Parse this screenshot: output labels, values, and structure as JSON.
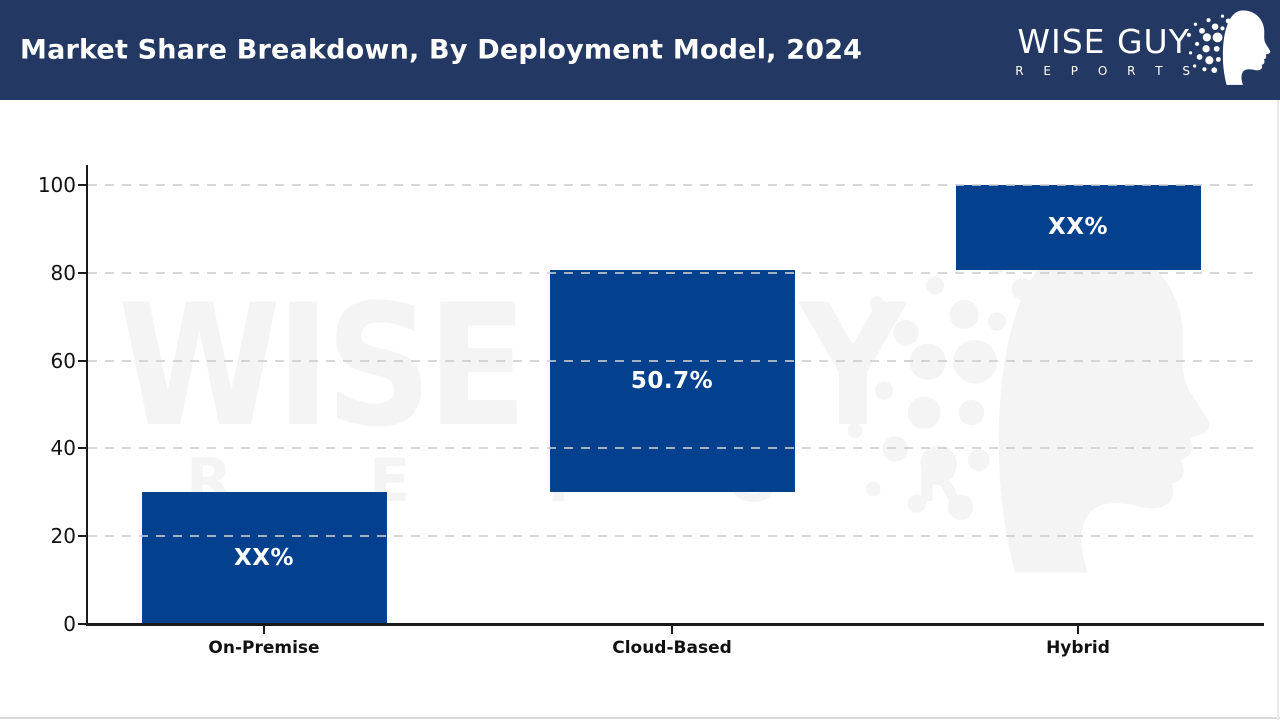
{
  "header": {
    "title": "Market Share Breakdown, By Deployment Model, 2024",
    "logo": {
      "name": "WISE GUY",
      "sub": "R E P O R T S"
    }
  },
  "watermark": {
    "line1": "WISE GUY",
    "line2": "R E P O R T S"
  },
  "chart_data": {
    "type": "bar",
    "subtype": "floating-stacked-percentage",
    "title": "Market Share Breakdown, By Deployment Model, 2024",
    "categories": [
      "On-Premise",
      "Cloud-Based",
      "Hybrid"
    ],
    "series": [
      {
        "name": "Market Share",
        "segments": [
          {
            "category": "On-Premise",
            "from": 0,
            "to": 30,
            "value": 30,
            "label": "XX%"
          },
          {
            "category": "Cloud-Based",
            "from": 30,
            "to": 80.7,
            "value": 50.7,
            "label": "50.7%"
          },
          {
            "category": "Hybrid",
            "from": 80.7,
            "to": 100,
            "value": 19.3,
            "label": "XX%"
          }
        ]
      }
    ],
    "yticks": [
      0,
      20,
      40,
      60,
      80,
      100
    ],
    "ylim": [
      0,
      105
    ],
    "xlabel": "",
    "ylabel": "",
    "grid": "dashed-horizontal",
    "legend_position": "none",
    "colors": {
      "bar": "#03418e",
      "grid": "#dcdcdc",
      "axis": "#1a1a1a",
      "header_bg": "#233862",
      "bar_label_text": "#ffffff",
      "watermark": "#f4f4f4"
    }
  }
}
